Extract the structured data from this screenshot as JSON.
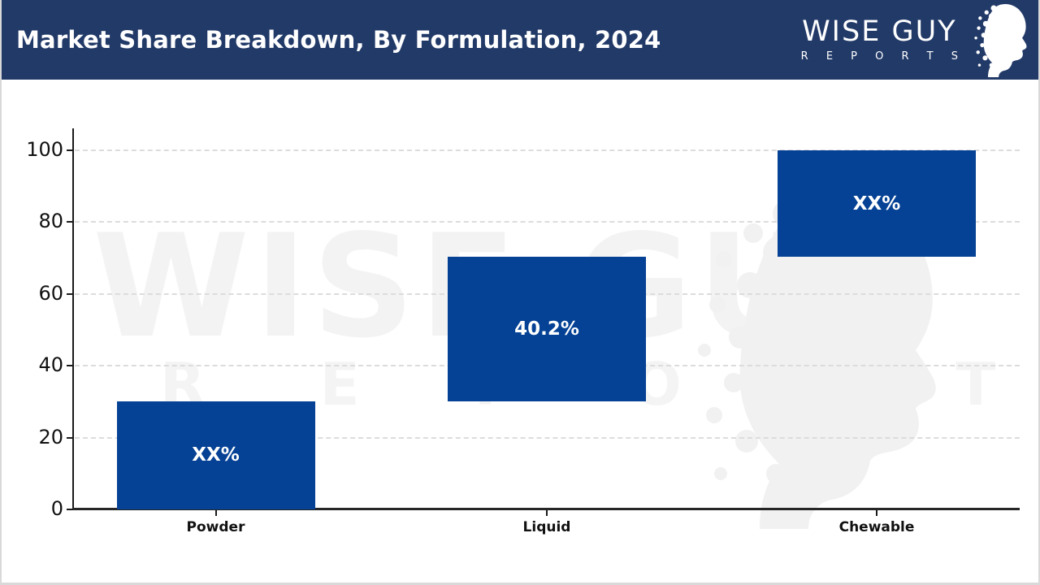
{
  "header": {
    "title": "Market Share Breakdown, By Formulation, 2024",
    "logo": {
      "name": "WISE GUY",
      "tagline": "R E P O R T S"
    }
  },
  "watermark": {
    "line1": "WISE GUY",
    "line2": "R E P O R T S"
  },
  "colors": {
    "header_background": "#223a68",
    "bar_blue": "#054194",
    "bar_label_white": "#ffffff",
    "gridline_gray": "#dcdcdc",
    "axis_black": "#1a1a1a",
    "watermark_gray": "#f3f3f3"
  },
  "chart_data": {
    "type": "bar",
    "subtype": "floating-stacked-waterfall",
    "title": "Market Share Breakdown, By Formulation, 2024",
    "categories": [
      "Powder",
      "Liquid",
      "Chewable"
    ],
    "segments": [
      {
        "category": "Powder",
        "start": 0,
        "end": 30.1,
        "value_label": "XX%"
      },
      {
        "category": "Liquid",
        "start": 30.1,
        "end": 70.3,
        "value_label": "40.2%"
      },
      {
        "category": "Chewable",
        "start": 70.3,
        "end": 100,
        "value_label": "XX%"
      }
    ],
    "yticks": [
      0,
      20,
      40,
      60,
      80,
      100
    ],
    "ylim": [
      0,
      105
    ],
    "xlabel": "",
    "ylabel": "",
    "grid": "horizontal-dashed",
    "legend": "none",
    "bar_color": "#054194",
    "label_color": "#ffffff"
  }
}
